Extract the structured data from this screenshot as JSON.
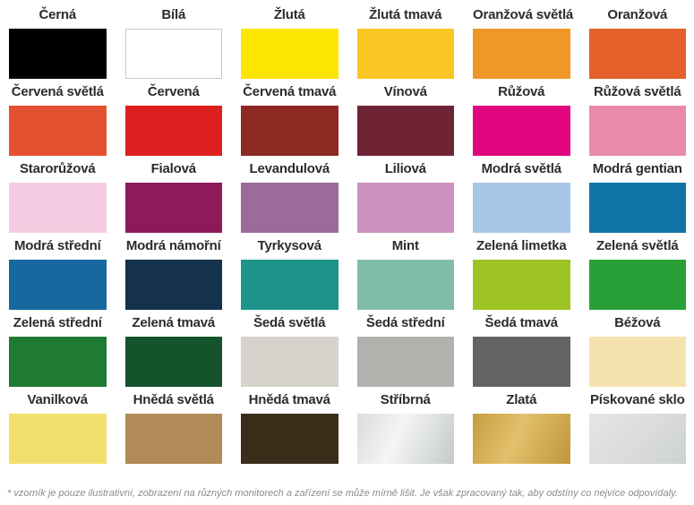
{
  "chart_data": {
    "type": "table",
    "description": "Color swatch sample sheet (vzorník barev) arranged as a 6x6 grid of named color samples",
    "grid": {
      "rows": 6,
      "cols": 6
    },
    "legend_position": "labels-above-swatches",
    "cells": [
      {
        "label": "Černá",
        "color": "#000000"
      },
      {
        "label": "Bílá",
        "color": "#ffffff",
        "border": "#c8c8c8"
      },
      {
        "label": "Žlutá",
        "color": "#fce500"
      },
      {
        "label": "Žlutá tmavá",
        "color": "#f9c623"
      },
      {
        "label": "Oranžová světlá",
        "color": "#ef9827"
      },
      {
        "label": "Oranžová",
        "color": "#e5602a"
      },
      {
        "label": "Červená světlá",
        "color": "#e55031"
      },
      {
        "label": "Červená",
        "color": "#dd1f1f"
      },
      {
        "label": "Červená tmavá",
        "color": "#8e2823"
      },
      {
        "label": "Vínová",
        "color": "#6f2436"
      },
      {
        "label": "Růžová",
        "color": "#e0067e"
      },
      {
        "label": "Růžová světlá",
        "color": "#e98aad"
      },
      {
        "label": "Starorůžová",
        "color": "#f5cce1"
      },
      {
        "label": "Fialová",
        "color": "#8e1a5a"
      },
      {
        "label": "Levandulová",
        "color": "#9b6b9a"
      },
      {
        "label": "Liliová",
        "color": "#cc91bd"
      },
      {
        "label": "Modrá světlá",
        "color": "#a8c6e8"
      },
      {
        "label": "Modrá gentian",
        "color": "#1174a7"
      },
      {
        "label": "Modrá střední",
        "color": "#16689f"
      },
      {
        "label": "Modrá námořní",
        "color": "#14314d"
      },
      {
        "label": "Tyrkysová",
        "color": "#1d948a"
      },
      {
        "label": "Mint",
        "color": "#80bda8"
      },
      {
        "label": "Zelená limetka",
        "color": "#9dc423"
      },
      {
        "label": "Zelená světlá",
        "color": "#28a038"
      },
      {
        "label": "Zelená střední",
        "color": "#1f7a34"
      },
      {
        "label": "Zelená tmavá",
        "color": "#15532b"
      },
      {
        "label": "Šedá světlá",
        "color": "#d6d3cc"
      },
      {
        "label": "Šedá střední",
        "color": "#b3b1ae"
      },
      {
        "label": "Šedá tmavá",
        "color": "#656463"
      },
      {
        "label": "Béžová",
        "color": "#f5e3ae"
      },
      {
        "label": "Vanilková",
        "color": "#f2e06e"
      },
      {
        "label": "Hnědá světlá",
        "color": "#b08a57"
      },
      {
        "label": "Hnědá tmavá",
        "color": "#3a2d1a"
      },
      {
        "label": "Stříbrná",
        "color": "linear-gradient(115deg, #d9dbdc 0%, #f3f5f6 42%, #c5c8c9 100%)"
      },
      {
        "label": "Zlatá",
        "color": "linear-gradient(115deg, #c69c40 0%, #e3c06c 45%, #d3ad55 70%, #c2963c 100%)"
      },
      {
        "label": "Pískované sklo",
        "color": "linear-gradient(135deg, #e4e6e7 0%, #d9dbdc 55%, #ced1d2 100%)"
      }
    ]
  },
  "footer": {
    "note": "* vzorník je pouze ilustrativní, zobrazení na různých monitorech a zařízení se může mírně lišit. Je však zpracovaný tak, aby odstíny co nejvíce odpovídaly."
  },
  "colors": {
    "background": "#ffffff",
    "label_text": "#2d2c2b",
    "footer_text": "#8b8b8b",
    "white_swatch_border": "#c8c8c8"
  }
}
